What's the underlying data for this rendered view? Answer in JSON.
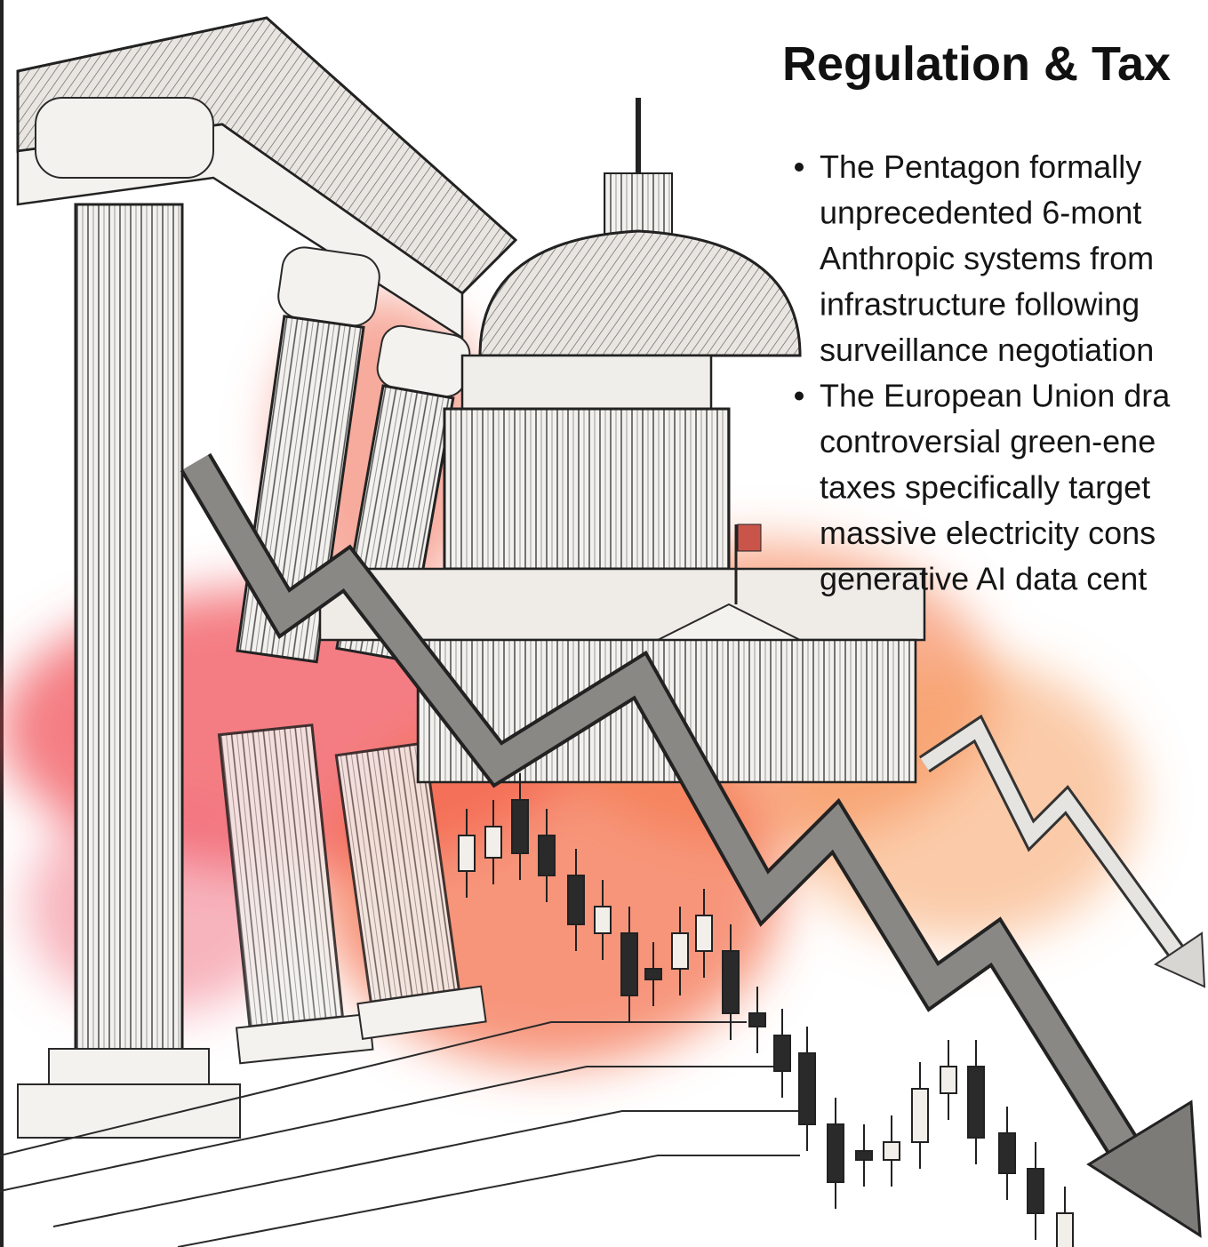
{
  "slide": {
    "title": "Regulation & Tax",
    "bullets": [
      {
        "lines": [
          "The Pentagon formally",
          "unprecedented 6-mont",
          "Anthropic systems from",
          "infrastructure following",
          "surveillance negotiation"
        ]
      },
      {
        "lines": [
          "The European Union dra",
          "controversial green-ene",
          "taxes specifically target",
          "massive electricity cons",
          "generative AI data cent"
        ]
      }
    ]
  }
}
